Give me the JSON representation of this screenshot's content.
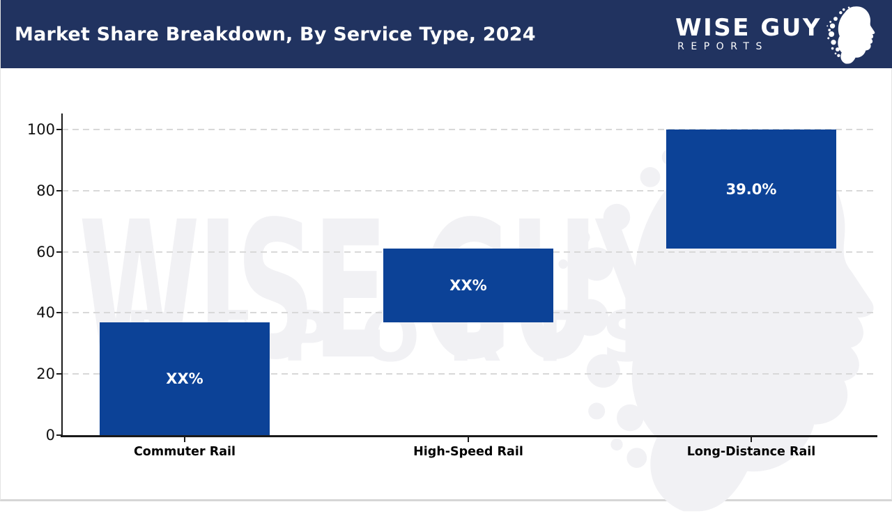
{
  "header": {
    "title": "Market Share Breakdown, By Service Type, 2024",
    "logo": {
      "line1": "WISE GUY",
      "line2": "REPORTS"
    }
  },
  "watermark": {
    "line1": "WISE GUY",
    "line2": "REPORTS"
  },
  "chart_data": {
    "type": "bar",
    "subtype": "floating-waterfall",
    "title": "Market Share Breakdown, By Service Type, 2024",
    "categories": [
      "Commuter Rail",
      "High-Speed Rail",
      "Long-Distance Rail"
    ],
    "segments": [
      {
        "category": "Commuter Rail",
        "start": 0,
        "end": 37,
        "value": 37,
        "label": "XX%"
      },
      {
        "category": "High-Speed Rail",
        "start": 37,
        "end": 61,
        "value": 24,
        "label": "XX%"
      },
      {
        "category": "Long-Distance Rail",
        "start": 61,
        "end": 100,
        "value": 39,
        "label": "39.0%"
      }
    ],
    "ylim": [
      0,
      100
    ],
    "yticks": [
      0,
      20,
      40,
      60,
      80,
      100
    ],
    "grid": "horizontal-dashed",
    "legend": "none",
    "xlabel": "",
    "ylabel": "",
    "bar_color": "#0c4297"
  },
  "colors": {
    "header_background": "#213360",
    "bar_blue": "#0c4297",
    "watermark_gray": "#f1f1f4",
    "gridline_gray": "#d8d8d8",
    "axis_black": "#1a1a1a",
    "background": "#ffffff"
  }
}
